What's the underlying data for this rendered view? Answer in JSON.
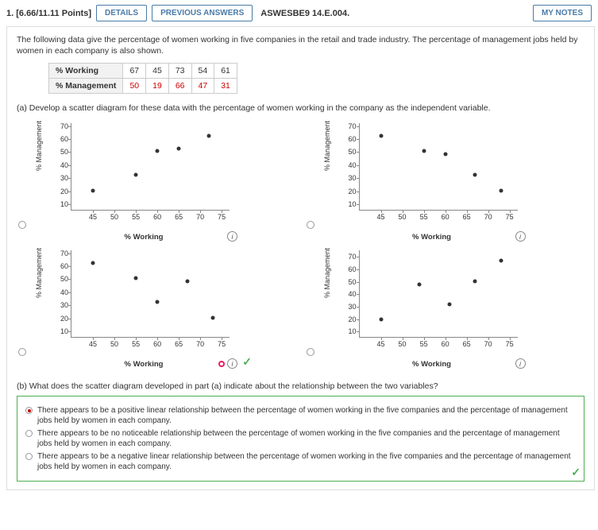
{
  "header": {
    "qnum": "1. [6.66/11.11 Points]",
    "details": "DETAILS",
    "prev": "PREVIOUS ANSWERS",
    "ref": "ASWESBE9 14.E.004.",
    "notes": "MY NOTES"
  },
  "intro": "The following data give the percentage of women working in five companies in the retail and trade industry. The percentage of management jobs held by women in each company is also shown.",
  "table": {
    "rows": [
      {
        "label": "% Working",
        "vals": [
          "67",
          "45",
          "73",
          "54",
          "61"
        ],
        "red": false
      },
      {
        "label": "% Management",
        "vals": [
          "50",
          "19",
          "66",
          "47",
          "31"
        ],
        "red": true
      }
    ]
  },
  "part_a": "(a)  Develop a scatter diagram for these data with the percentage of women working in the company as the independent variable.",
  "charts": [
    {
      "xlabel": "% Working",
      "ylabel": "% Management",
      "xlim": [
        40,
        77
      ],
      "ylim": [
        5,
        72
      ],
      "yticks": [
        10,
        20,
        30,
        40,
        50,
        60,
        70
      ],
      "xticks": [
        45,
        50,
        55,
        60,
        65,
        70,
        75
      ],
      "points": [
        [
          45,
          20
        ],
        [
          55,
          32
        ],
        [
          60,
          50
        ],
        [
          65,
          52
        ],
        [
          72,
          62
        ]
      ],
      "info": true
    },
    {
      "xlabel": "% Working",
      "ylabel": "% Management",
      "xlim": [
        40,
        77
      ],
      "ylim": [
        5,
        72
      ],
      "yticks": [
        10,
        20,
        30,
        40,
        50,
        60,
        70
      ],
      "xticks": [
        45,
        50,
        55,
        60,
        65,
        70,
        75
      ],
      "points": [
        [
          45,
          62
        ],
        [
          55,
          50
        ],
        [
          60,
          48
        ],
        [
          67,
          32
        ],
        [
          73,
          20
        ]
      ],
      "info": true
    },
    {
      "xlabel": "% Working",
      "ylabel": "% Management",
      "xlim": [
        40,
        77
      ],
      "ylim": [
        5,
        72
      ],
      "yticks": [
        10,
        20,
        30,
        40,
        50,
        60,
        70
      ],
      "xticks": [
        45,
        50,
        55,
        60,
        65,
        70,
        75
      ],
      "points": [
        [
          45,
          62
        ],
        [
          55,
          50
        ],
        [
          60,
          32
        ],
        [
          67,
          48
        ],
        [
          73,
          20
        ]
      ],
      "info": true,
      "pink": true,
      "check": true
    },
    {
      "xlabel": "% Working",
      "ylabel": "% Management",
      "xlim": [
        40,
        77
      ],
      "ylim": [
        5,
        75
      ],
      "yticks": [
        10,
        20,
        30,
        40,
        50,
        60,
        70
      ],
      "xticks": [
        45,
        50,
        55,
        60,
        65,
        70,
        75
      ],
      "points": [
        [
          45,
          19
        ],
        [
          54,
          47
        ],
        [
          61,
          31
        ],
        [
          67,
          50
        ],
        [
          73,
          66
        ]
      ],
      "info": true
    }
  ],
  "part_b": "(b)  What does the scatter diagram developed in part (a) indicate about the relationship between the two variables?",
  "answers": [
    {
      "sel": true,
      "text": "There appears to be a positive linear relationship between the percentage of women working in the five companies and the percentage of management jobs held by women in each company."
    },
    {
      "sel": false,
      "text": "There appears to be no noticeable relationship between the percentage of women working in the five companies and the percentage of management jobs held by women in each company."
    },
    {
      "sel": false,
      "text": "There appears to be a negative linear relationship between the percentage of women working in the five companies and the percentage of management jobs held by women in each company."
    }
  ]
}
